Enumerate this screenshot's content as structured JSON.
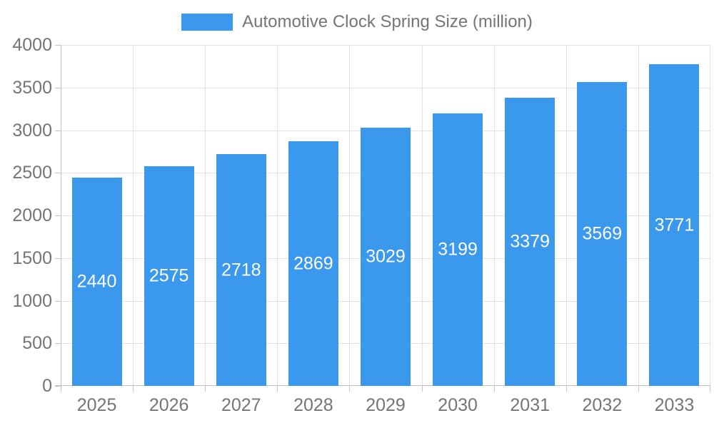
{
  "chart_data": {
    "type": "bar",
    "legend": "Automotive Clock Spring Size (million)",
    "legend_position": "top",
    "categories": [
      "2025",
      "2026",
      "2027",
      "2028",
      "2029",
      "2030",
      "2031",
      "2032",
      "2033"
    ],
    "values": [
      2440,
      2575,
      2718,
      2869,
      3029,
      3199,
      3379,
      3569,
      3771
    ],
    "ylim": [
      0,
      4000
    ],
    "ytick_step": 500,
    "yticks": [
      0,
      500,
      1000,
      1500,
      2000,
      2500,
      3000,
      3500,
      4000
    ],
    "grid": true,
    "bar_labels_shown": true
  },
  "style": {
    "bar_color": "#3A99EC",
    "grid_color": "#E2E2E2",
    "axis_color": "#C2C2C2",
    "tick_color": "#C2C2C2",
    "label_color": "#757575",
    "bar_label_color": "#FFFFFF",
    "background_color": "#FFFFFF"
  }
}
